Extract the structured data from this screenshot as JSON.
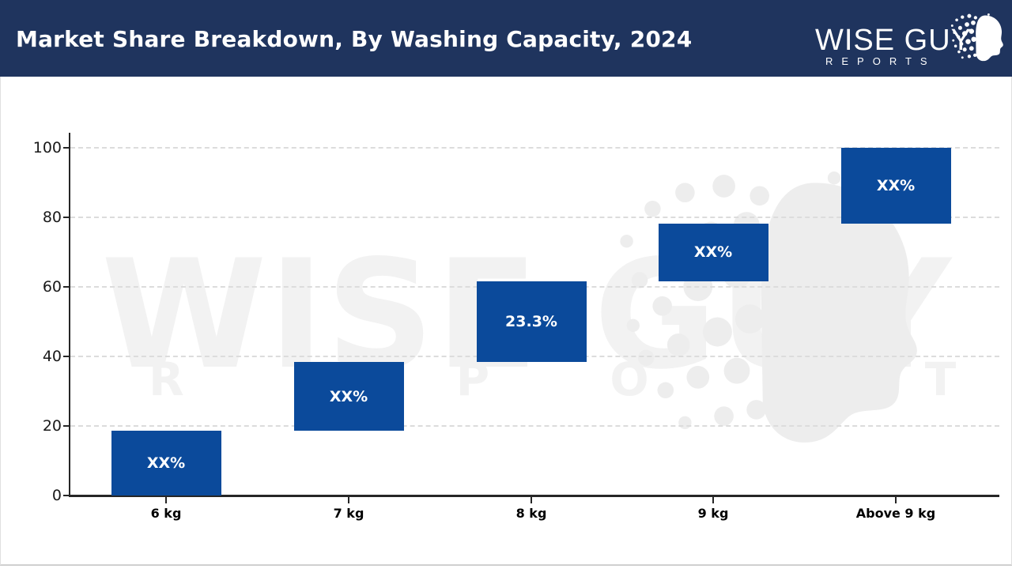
{
  "header": {
    "title": "Market Share Breakdown, By Washing Capacity, 2024",
    "logo": {
      "line1": "WISE GUY",
      "line2": "REPORTS"
    }
  },
  "watermark": {
    "line1": "WISE GUY",
    "line2": "R E P O R T S"
  },
  "chart_data": {
    "type": "bar",
    "subtype": "waterfall",
    "title": "Market Share Breakdown, By Washing Capacity, 2024",
    "xlabel": "",
    "ylabel": "",
    "categories": [
      "6 kg",
      "7 kg",
      "8 kg",
      "9 kg",
      "Above 9 kg"
    ],
    "segments": [
      {
        "category": "6 kg",
        "start": 0,
        "end": 18.6,
        "value": 18.6,
        "label": "XX%"
      },
      {
        "category": "7 kg",
        "start": 18.6,
        "end": 38.4,
        "value": 19.8,
        "label": "XX%"
      },
      {
        "category": "8 kg",
        "start": 38.4,
        "end": 61.7,
        "value": 23.3,
        "label": "23.3%"
      },
      {
        "category": "9 kg",
        "start": 61.7,
        "end": 78.1,
        "value": 16.4,
        "label": "XX%"
      },
      {
        "category": "Above 9 kg",
        "start": 78.1,
        "end": 100,
        "value": 21.9,
        "label": "XX%"
      }
    ],
    "ylim": [
      0,
      100
    ],
    "yticks": [
      0,
      20,
      40,
      60,
      80,
      100
    ],
    "grid": "horizontal-dashed",
    "legend": "none",
    "bar_color": "#0b4a9b",
    "bar_label_color": "#ffffff"
  },
  "colors": {
    "header_bg": "#1f345e",
    "bar": "#0b4a9b",
    "axis": "#262626",
    "gridline": "#dcdcdc",
    "watermark": "#f2f2f2",
    "page_border": "#cfcfcf"
  }
}
